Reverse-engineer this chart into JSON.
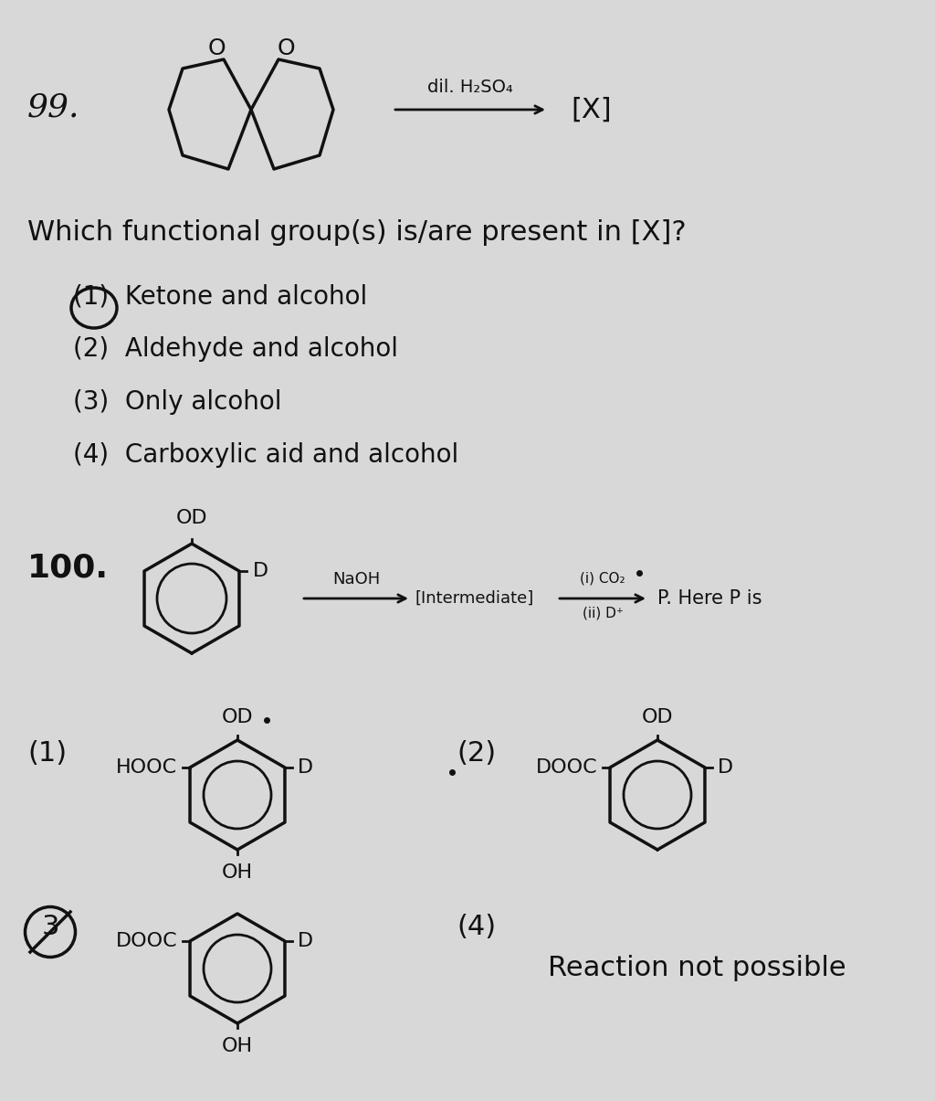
{
  "bg_color": "#c0c0c0",
  "page_bg": "#d8d8d8",
  "text_color": "#111111",
  "q99_number": "99.",
  "q99_reaction_label": "dil. H₂SO₄",
  "q99_product": "[X]",
  "q99_question": "Which functional group(s) is/are present in [X]?",
  "q99_options": [
    "(1)  Ketone and alcohol",
    "(2)  Aldehyde and alcohol",
    "(3)  Only alcohol",
    "(4)  Carboxylic aid and alcohol"
  ],
  "q100_number": "100.",
  "q100_reagent1": "NaOH",
  "q100_intermediate": "[Intermediate]",
  "q100_reagent2": "(i) CO₂",
  "q100_reagent3": "(ii) D⁺",
  "q100_product2": "P. Here P is",
  "q100_option4_text": "Reaction not possible"
}
